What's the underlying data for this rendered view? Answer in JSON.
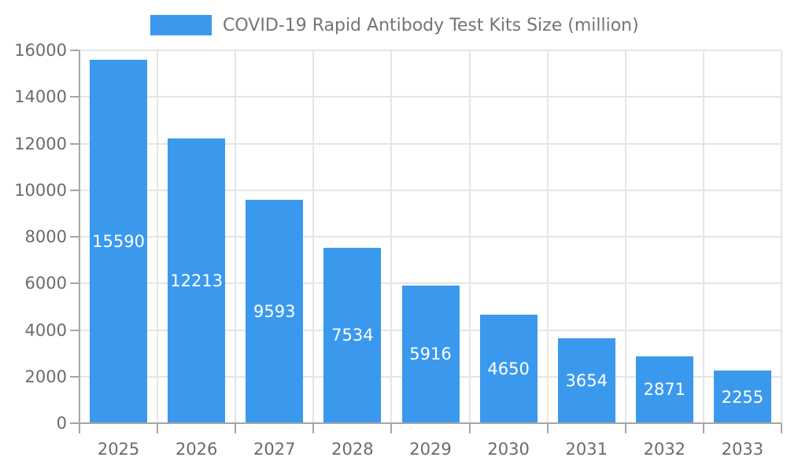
{
  "chart_data": {
    "type": "bar",
    "title": "COVID-19 Rapid Antibody Test Kits Size (million)",
    "legend": {
      "position": "top",
      "label": "COVID-19 Rapid Antibody Test Kits Size (million)"
    },
    "categories": [
      "2025",
      "2026",
      "2027",
      "2028",
      "2029",
      "2030",
      "2031",
      "2032",
      "2033"
    ],
    "values": [
      15590,
      12213,
      9593,
      7534,
      5916,
      4650,
      3654,
      2871,
      2255
    ],
    "value_labels_position": "inside-center",
    "xlabel": "",
    "ylabel": "",
    "ylim": [
      0,
      16000
    ],
    "y_ticks": [
      0,
      2000,
      4000,
      6000,
      8000,
      10000,
      12000,
      14000,
      16000
    ],
    "grid": true,
    "colors": {
      "bar": "#3B99ED",
      "axis_line": "#A6A6A6",
      "gridline": "#E5E5E5",
      "tick_label": "#6B6B6B",
      "legend_text": "#757575",
      "value_label": "#FFFFFF",
      "background": "#FFFFFF"
    }
  }
}
